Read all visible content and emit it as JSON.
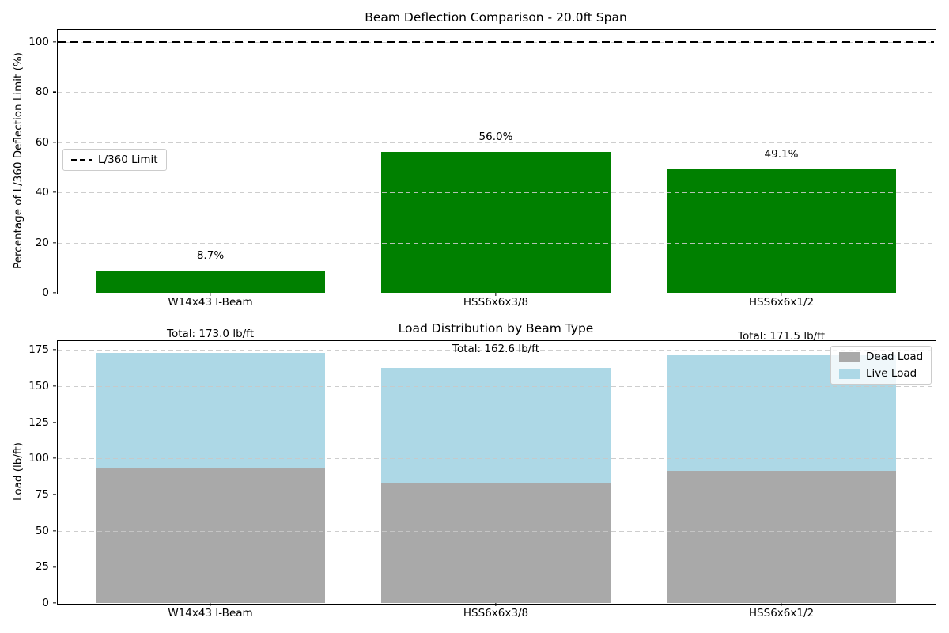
{
  "figure": {
    "background": "#ffffff"
  },
  "chart_data": [
    {
      "type": "bar",
      "title": "Beam Deflection Comparison - 20.0ft Span",
      "ylabel": "Percentage of L/360 Deflection Limit (%)",
      "xlabel": "",
      "categories": [
        "W14x43 I-Beam",
        "HSS6x6x3/8",
        "HSS6x6x1/2"
      ],
      "values": [
        8.7,
        56.0,
        49.1
      ],
      "bar_labels": [
        "8.7%",
        "56.0%",
        "49.1%"
      ],
      "bar_color": "#008000",
      "ytick_labels": [
        "0",
        "20",
        "40",
        "60",
        "80",
        "100"
      ],
      "ytick_values": [
        0,
        20,
        40,
        60,
        80,
        100
      ],
      "ylim": [
        0,
        105
      ],
      "grid": true,
      "limit_line": {
        "value": 100,
        "color": "#000000",
        "style": "dashed"
      },
      "legend": {
        "position": "center-left",
        "entries": [
          {
            "label": "L/360 Limit",
            "marker": "dashed-line",
            "color": "#000000"
          }
        ]
      }
    },
    {
      "type": "stacked-bar",
      "title": "Load Distribution by Beam Type",
      "ylabel": "Load (lb/ft)",
      "xlabel": "",
      "categories": [
        "W14x43 I-Beam",
        "HSS6x6x3/8",
        "HSS6x6x1/2"
      ],
      "series": [
        {
          "name": "Dead Load",
          "color": "#a9a9a9",
          "values": [
            93.0,
            82.6,
            91.5
          ]
        },
        {
          "name": "Live Load",
          "color": "#add8e6",
          "values": [
            80.0,
            80.0,
            80.0
          ]
        }
      ],
      "totals": [
        173.0,
        162.6,
        171.5
      ],
      "total_labels": [
        "Total: 173.0 lb/ft",
        "Total: 162.6 lb/ft",
        "Total: 171.5 lb/ft"
      ],
      "ytick_labels": [
        "0",
        "25",
        "50",
        "75",
        "100",
        "125",
        "150",
        "175"
      ],
      "ytick_values": [
        0,
        25,
        50,
        75,
        100,
        125,
        150,
        175
      ],
      "ylim": [
        0,
        181.65
      ],
      "grid": true,
      "legend": {
        "position": "upper-right",
        "entries": [
          {
            "label": "Dead Load",
            "marker": "patch",
            "color": "#a9a9a9"
          },
          {
            "label": "Live Load",
            "marker": "patch",
            "color": "#add8e6"
          }
        ]
      }
    }
  ]
}
